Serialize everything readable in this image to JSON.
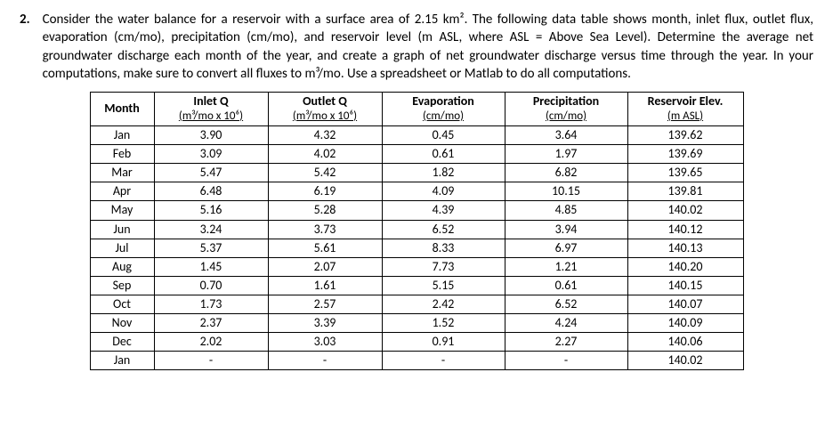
{
  "question": {
    "number": "2.",
    "text": "Consider the water balance for a reservoir with a surface area of 2.15 km². The following data table shows month, inlet flux, outlet flux, evaporation (cm/mo), precipitation (cm/mo), and reservoir level (m ASL, where ASL = Above Sea Level). Determine the average net groundwater discharge each month of the year, and create a graph of net groundwater discharge versus time through the year. In your computations, make sure to convert all fluxes to m³/mo. Use a spreadsheet or Matlab to do all computations."
  },
  "table": {
    "headers": [
      {
        "label": "Month",
        "unit": ""
      },
      {
        "label": "Inlet Q",
        "unit": "(m³/mo x 10⁶)"
      },
      {
        "label": "Outlet Q",
        "unit": "(m³/mo x 10⁶)"
      },
      {
        "label": "Evaporation",
        "unit": "(cm/mo)"
      },
      {
        "label": "Precipitation",
        "unit": "(cm/mo)"
      },
      {
        "label": "Reservoir Elev.",
        "unit": "(m ASL)"
      }
    ],
    "rows": [
      [
        "Jan",
        "3.90",
        "4.32",
        "0.45",
        "3.64",
        "139.62"
      ],
      [
        "Feb",
        "3.09",
        "4.02",
        "0.61",
        "1.97",
        "139.69"
      ],
      [
        "Mar",
        "5.47",
        "5.42",
        "1.82",
        "6.82",
        "139.65"
      ],
      [
        "Apr",
        "6.48",
        "6.19",
        "4.09",
        "10.15",
        "139.81"
      ],
      [
        "May",
        "5.16",
        "5.28",
        "4.39",
        "4.85",
        "140.02"
      ],
      [
        "Jun",
        "3.24",
        "3.73",
        "6.52",
        "3.94",
        "140.12"
      ],
      [
        "Jul",
        "5.37",
        "5.61",
        "8.33",
        "6.97",
        "140.13"
      ],
      [
        "Aug",
        "1.45",
        "2.07",
        "7.73",
        "1.21",
        "140.20"
      ],
      [
        "Sep",
        "0.70",
        "1.61",
        "5.15",
        "0.61",
        "140.15"
      ],
      [
        "Oct",
        "1.73",
        "2.57",
        "2.42",
        "6.52",
        "140.07"
      ],
      [
        "Nov",
        "2.37",
        "3.39",
        "1.52",
        "4.24",
        "140.09"
      ],
      [
        "Dec",
        "2.02",
        "3.03",
        "0.91",
        "2.27",
        "140.06"
      ],
      [
        "Jan",
        "-",
        "-",
        "-",
        "-",
        "140.02"
      ]
    ],
    "col_classes": [
      "col-month",
      "col-inlet",
      "col-outlet",
      "col-evap",
      "col-prec",
      "col-elev"
    ],
    "border_color": "#000000",
    "header_font_weight": "bold",
    "cell_align": "center"
  }
}
